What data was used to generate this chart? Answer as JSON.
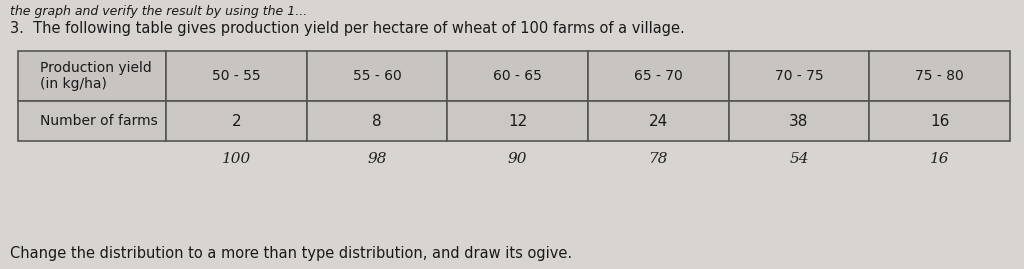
{
  "top_text": "the graph and verify the result by using the 1...",
  "problem_number": "3.",
  "problem_text": " The following table gives production yield per hectare of wheat of 100 farms of a village.",
  "col_headers": [
    "50 - 55",
    "55 - 60",
    "60 - 65",
    "65 - 70",
    "70 - 75",
    "75 - 80"
  ],
  "row1_label": "Production yield\n(in kg/ha)",
  "row2_label": "Number of farms",
  "row_values": [
    "2",
    "8",
    "12",
    "24",
    "38",
    "16"
  ],
  "cumulative_values": [
    "100",
    "98",
    "90",
    "78",
    "54",
    "16"
  ],
  "bottom_text": "Change the distribution to a more than type distribution, and draw its ogive.",
  "bg_color": "#d8d5d0",
  "cell_color_header": "#c8c5c0",
  "cell_color_data": "#cbc8c3",
  "text_color": "#1a1a1a",
  "cum_text_color": "#333333"
}
